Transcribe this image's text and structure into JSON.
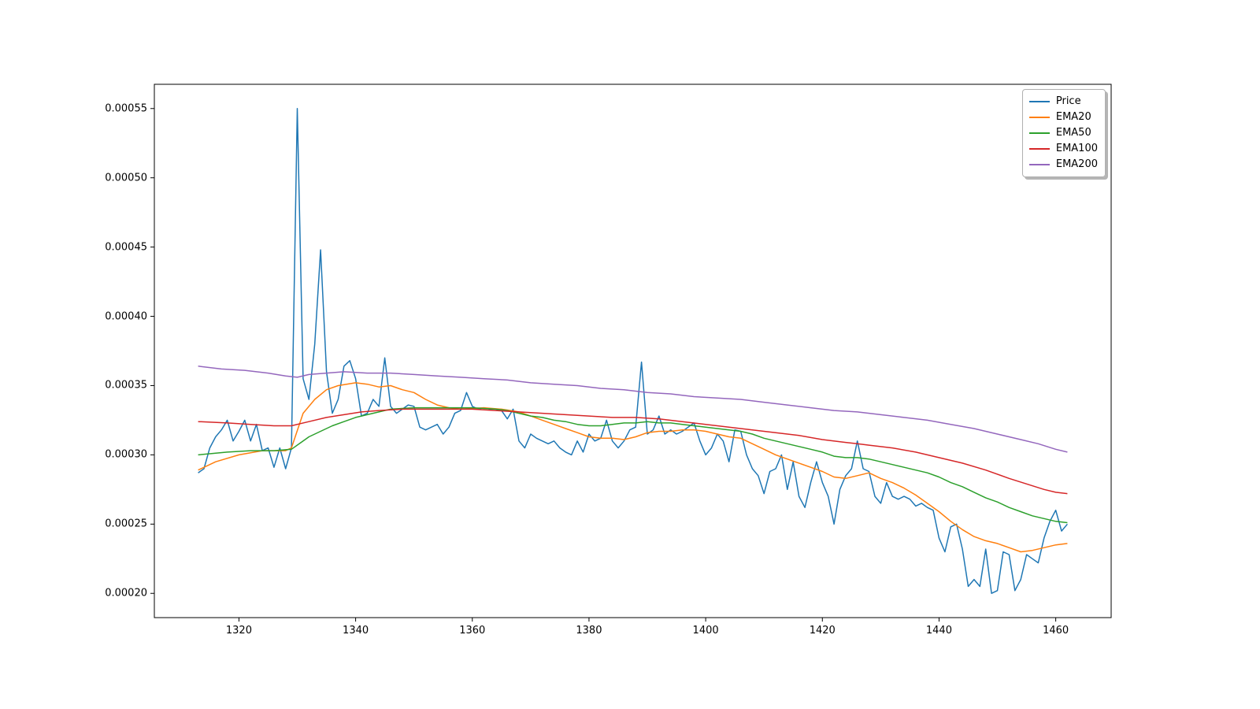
{
  "figure": {
    "background": "#ffffff",
    "spine_color": "#000000"
  },
  "chart_data": {
    "type": "line",
    "title": "",
    "xlabel": "",
    "ylabel": "",
    "grid": false,
    "legend_position": "upper right",
    "legend_shadow": true,
    "xlim": [
      1305.5,
      1469.5
    ],
    "ylim": [
      0.0001825,
      0.0005675
    ],
    "x_ticks": [
      1320,
      1340,
      1360,
      1380,
      1400,
      1420,
      1440,
      1460
    ],
    "x_tick_labels": [
      "1320",
      "1340",
      "1360",
      "1380",
      "1400",
      "1420",
      "1440",
      "1460"
    ],
    "y_ticks": [
      0.0002,
      0.00025,
      0.0003,
      0.00035,
      0.0004,
      0.00045,
      0.0005,
      0.00055
    ],
    "y_tick_labels": [
      "0.00020",
      "0.00025",
      "0.00030",
      "0.00035",
      "0.00040",
      "0.00045",
      "0.00050",
      "0.00055"
    ],
    "series": [
      {
        "name": "Price",
        "color": "#1f77b4",
        "x_start": 1313,
        "x_step": 1,
        "values": [
          0.000287,
          0.00029,
          0.000305,
          0.000313,
          0.000318,
          0.000325,
          0.00031,
          0.000317,
          0.000325,
          0.00031,
          0.000322,
          0.000303,
          0.000305,
          0.000291,
          0.000305,
          0.00029,
          0.000305,
          0.00055,
          0.000355,
          0.00034,
          0.00038,
          0.000448,
          0.00036,
          0.00033,
          0.00034,
          0.000364,
          0.000368,
          0.000355,
          0.000328,
          0.00033,
          0.00034,
          0.000335,
          0.00037,
          0.000335,
          0.00033,
          0.000333,
          0.000336,
          0.000335,
          0.00032,
          0.000318,
          0.00032,
          0.000322,
          0.000315,
          0.00032,
          0.00033,
          0.000332,
          0.000345,
          0.000335,
          0.000333,
          0.000334,
          0.000333,
          0.000333,
          0.000332,
          0.000326,
          0.000333,
          0.00031,
          0.000305,
          0.000315,
          0.000312,
          0.00031,
          0.000308,
          0.00031,
          0.000305,
          0.000302,
          0.0003,
          0.00031,
          0.000302,
          0.000315,
          0.00031,
          0.000312,
          0.000325,
          0.00031,
          0.000305,
          0.00031,
          0.000318,
          0.00032,
          0.000367,
          0.000315,
          0.000318,
          0.000328,
          0.000315,
          0.000318,
          0.000315,
          0.000317,
          0.00032,
          0.000323,
          0.00031,
          0.0003,
          0.000305,
          0.000315,
          0.00031,
          0.000295,
          0.000318,
          0.000317,
          0.0003,
          0.00029,
          0.000285,
          0.000272,
          0.000288,
          0.00029,
          0.0003,
          0.000275,
          0.000295,
          0.00027,
          0.000262,
          0.00028,
          0.000295,
          0.00028,
          0.00027,
          0.00025,
          0.000275,
          0.000285,
          0.00029,
          0.00031,
          0.00029,
          0.000288,
          0.00027,
          0.000265,
          0.00028,
          0.00027,
          0.000268,
          0.00027,
          0.000268,
          0.000263,
          0.000265,
          0.000262,
          0.00026,
          0.00024,
          0.00023,
          0.000248,
          0.00025,
          0.000232,
          0.000205,
          0.00021,
          0.000205,
          0.000232,
          0.0002,
          0.000202,
          0.00023,
          0.000228,
          0.000202,
          0.00021,
          0.000228,
          0.000225,
          0.000222,
          0.00024,
          0.000252,
          0.00026,
          0.000245,
          0.00025
        ]
      },
      {
        "name": "EMA20",
        "color": "#ff7f0e",
        "points": [
          [
            1313,
            0.000289
          ],
          [
            1316,
            0.000295
          ],
          [
            1320,
            0.0003
          ],
          [
            1324,
            0.000303
          ],
          [
            1328,
            0.000303
          ],
          [
            1329,
            0.000305
          ],
          [
            1331,
            0.00033
          ],
          [
            1333,
            0.00034
          ],
          [
            1335,
            0.000347
          ],
          [
            1337,
            0.00035
          ],
          [
            1340,
            0.000352
          ],
          [
            1342,
            0.000351
          ],
          [
            1344,
            0.000349
          ],
          [
            1346,
            0.00035
          ],
          [
            1348,
            0.000347
          ],
          [
            1350,
            0.000345
          ],
          [
            1352,
            0.00034
          ],
          [
            1354,
            0.000336
          ],
          [
            1356,
            0.000334
          ],
          [
            1358,
            0.000333
          ],
          [
            1362,
            0.000334
          ],
          [
            1365,
            0.000333
          ],
          [
            1368,
            0.000331
          ],
          [
            1370,
            0.000328
          ],
          [
            1372,
            0.000325
          ],
          [
            1374,
            0.000322
          ],
          [
            1376,
            0.000319
          ],
          [
            1378,
            0.000316
          ],
          [
            1380,
            0.000313
          ],
          [
            1382,
            0.000312
          ],
          [
            1384,
            0.000312
          ],
          [
            1386,
            0.000311
          ],
          [
            1388,
            0.000313
          ],
          [
            1390,
            0.000316
          ],
          [
            1392,
            0.000317
          ],
          [
            1394,
            0.000317
          ],
          [
            1396,
            0.000318
          ],
          [
            1398,
            0.000318
          ],
          [
            1400,
            0.000317
          ],
          [
            1402,
            0.000315
          ],
          [
            1404,
            0.000313
          ],
          [
            1406,
            0.000312
          ],
          [
            1408,
            0.000308
          ],
          [
            1410,
            0.000304
          ],
          [
            1412,
            0.0003
          ],
          [
            1414,
            0.000297
          ],
          [
            1416,
            0.000294
          ],
          [
            1418,
            0.000291
          ],
          [
            1420,
            0.000288
          ],
          [
            1422,
            0.000284
          ],
          [
            1424,
            0.000283
          ],
          [
            1426,
            0.000285
          ],
          [
            1428,
            0.000287
          ],
          [
            1430,
            0.000283
          ],
          [
            1432,
            0.00028
          ],
          [
            1434,
            0.000276
          ],
          [
            1436,
            0.000271
          ],
          [
            1438,
            0.000265
          ],
          [
            1440,
            0.000259
          ],
          [
            1442,
            0.000252
          ],
          [
            1444,
            0.000246
          ],
          [
            1446,
            0.000241
          ],
          [
            1448,
            0.000238
          ],
          [
            1450,
            0.000236
          ],
          [
            1452,
            0.000233
          ],
          [
            1454,
            0.00023
          ],
          [
            1456,
            0.000231
          ],
          [
            1458,
            0.000233
          ],
          [
            1460,
            0.000235
          ],
          [
            1462,
            0.000236
          ]
        ]
      },
      {
        "name": "EMA50",
        "color": "#2ca02c",
        "points": [
          [
            1313,
            0.0003
          ],
          [
            1318,
            0.000302
          ],
          [
            1322,
            0.000303
          ],
          [
            1326,
            0.000303
          ],
          [
            1329,
            0.000304
          ],
          [
            1332,
            0.000313
          ],
          [
            1334,
            0.000317
          ],
          [
            1336,
            0.000321
          ],
          [
            1338,
            0.000324
          ],
          [
            1340,
            0.000327
          ],
          [
            1342,
            0.000329
          ],
          [
            1344,
            0.000331
          ],
          [
            1346,
            0.000333
          ],
          [
            1350,
            0.000334
          ],
          [
            1356,
            0.000334
          ],
          [
            1360,
            0.000334
          ],
          [
            1364,
            0.000333
          ],
          [
            1366,
            0.000332
          ],
          [
            1368,
            0.00033
          ],
          [
            1370,
            0.000328
          ],
          [
            1372,
            0.000327
          ],
          [
            1374,
            0.000325
          ],
          [
            1376,
            0.000324
          ],
          [
            1378,
            0.000322
          ],
          [
            1380,
            0.000321
          ],
          [
            1382,
            0.000321
          ],
          [
            1384,
            0.000322
          ],
          [
            1386,
            0.000323
          ],
          [
            1388,
            0.000323
          ],
          [
            1390,
            0.000324
          ],
          [
            1392,
            0.000323
          ],
          [
            1394,
            0.000323
          ],
          [
            1396,
            0.000322
          ],
          [
            1398,
            0.000321
          ],
          [
            1400,
            0.00032
          ],
          [
            1402,
            0.000319
          ],
          [
            1404,
            0.000318
          ],
          [
            1406,
            0.000317
          ],
          [
            1408,
            0.000315
          ],
          [
            1410,
            0.000312
          ],
          [
            1412,
            0.00031
          ],
          [
            1414,
            0.000308
          ],
          [
            1416,
            0.000306
          ],
          [
            1418,
            0.000304
          ],
          [
            1420,
            0.000302
          ],
          [
            1422,
            0.000299
          ],
          [
            1424,
            0.000298
          ],
          [
            1426,
            0.000298
          ],
          [
            1428,
            0.000297
          ],
          [
            1430,
            0.000295
          ],
          [
            1432,
            0.000293
          ],
          [
            1434,
            0.000291
          ],
          [
            1436,
            0.000289
          ],
          [
            1438,
            0.000287
          ],
          [
            1440,
            0.000284
          ],
          [
            1442,
            0.00028
          ],
          [
            1444,
            0.000277
          ],
          [
            1446,
            0.000273
          ],
          [
            1448,
            0.000269
          ],
          [
            1450,
            0.000266
          ],
          [
            1452,
            0.000262
          ],
          [
            1454,
            0.000259
          ],
          [
            1456,
            0.000256
          ],
          [
            1458,
            0.000254
          ],
          [
            1460,
            0.000252
          ],
          [
            1462,
            0.000251
          ]
        ]
      },
      {
        "name": "EMA100",
        "color": "#d62728",
        "points": [
          [
            1313,
            0.000324
          ],
          [
            1318,
            0.000323
          ],
          [
            1322,
            0.000322
          ],
          [
            1326,
            0.000321
          ],
          [
            1329,
            0.000321
          ],
          [
            1332,
            0.000324
          ],
          [
            1335,
            0.000327
          ],
          [
            1338,
            0.000329
          ],
          [
            1341,
            0.000331
          ],
          [
            1344,
            0.000332
          ],
          [
            1348,
            0.000333
          ],
          [
            1354,
            0.000333
          ],
          [
            1360,
            0.000333
          ],
          [
            1364,
            0.000332
          ],
          [
            1368,
            0.000331
          ],
          [
            1372,
            0.00033
          ],
          [
            1376,
            0.000329
          ],
          [
            1380,
            0.000328
          ],
          [
            1384,
            0.000327
          ],
          [
            1388,
            0.000327
          ],
          [
            1392,
            0.000326
          ],
          [
            1396,
            0.000324
          ],
          [
            1400,
            0.000322
          ],
          [
            1404,
            0.00032
          ],
          [
            1408,
            0.000318
          ],
          [
            1412,
            0.000316
          ],
          [
            1416,
            0.000314
          ],
          [
            1420,
            0.000311
          ],
          [
            1424,
            0.000309
          ],
          [
            1426,
            0.000308
          ],
          [
            1428,
            0.000307
          ],
          [
            1432,
            0.000305
          ],
          [
            1436,
            0.000302
          ],
          [
            1440,
            0.000298
          ],
          [
            1444,
            0.000294
          ],
          [
            1448,
            0.000289
          ],
          [
            1452,
            0.000283
          ],
          [
            1455,
            0.000279
          ],
          [
            1458,
            0.000275
          ],
          [
            1460,
            0.000273
          ],
          [
            1462,
            0.000272
          ]
        ]
      },
      {
        "name": "EMA200",
        "color": "#9467bd",
        "points": [
          [
            1313,
            0.000364
          ],
          [
            1317,
            0.000362
          ],
          [
            1321,
            0.000361
          ],
          [
            1325,
            0.000359
          ],
          [
            1328,
            0.000357
          ],
          [
            1330,
            0.000356
          ],
          [
            1332,
            0.000358
          ],
          [
            1335,
            0.000359
          ],
          [
            1338,
            0.00036
          ],
          [
            1342,
            0.000359
          ],
          [
            1346,
            0.000359
          ],
          [
            1350,
            0.000358
          ],
          [
            1354,
            0.000357
          ],
          [
            1358,
            0.000356
          ],
          [
            1362,
            0.000355
          ],
          [
            1366,
            0.000354
          ],
          [
            1370,
            0.000352
          ],
          [
            1374,
            0.000351
          ],
          [
            1378,
            0.00035
          ],
          [
            1382,
            0.000348
          ],
          [
            1386,
            0.000347
          ],
          [
            1390,
            0.000345
          ],
          [
            1394,
            0.000344
          ],
          [
            1398,
            0.000342
          ],
          [
            1402,
            0.000341
          ],
          [
            1406,
            0.00034
          ],
          [
            1410,
            0.000338
          ],
          [
            1414,
            0.000336
          ],
          [
            1418,
            0.000334
          ],
          [
            1422,
            0.000332
          ],
          [
            1426,
            0.000331
          ],
          [
            1430,
            0.000329
          ],
          [
            1434,
            0.000327
          ],
          [
            1438,
            0.000325
          ],
          [
            1442,
            0.000322
          ],
          [
            1446,
            0.000319
          ],
          [
            1450,
            0.000315
          ],
          [
            1454,
            0.000311
          ],
          [
            1457,
            0.000308
          ],
          [
            1460,
            0.000304
          ],
          [
            1462,
            0.000302
          ]
        ]
      }
    ]
  }
}
